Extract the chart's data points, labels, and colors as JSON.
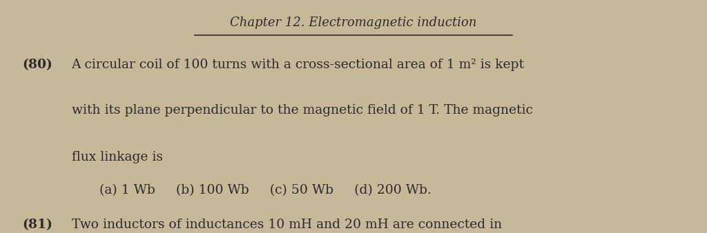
{
  "title": "Chapter 12. Electromagnetic induction",
  "bg_color": "#c8b89a",
  "title_color": "#2b2b2b",
  "text_color": "#2b2b2b",
  "title_fontsize": 13,
  "body_fontsize": 13.5,
  "line80": "A circular coil of 100 turns with a cross-sectional area of 1 m² is kept",
  "line80b": "with its plane perpendicular to the magnetic field of 1 T. The magnetic",
  "line80c": "flux linkage is",
  "options": "(a) 1 Wb     (b) 100 Wb     (c) 50 Wb     (d) 200 Wb.",
  "line81": "Two inductors of inductances 10 mH and 20 mH are connected in",
  "label80": "(80)",
  "label81": "(81)"
}
